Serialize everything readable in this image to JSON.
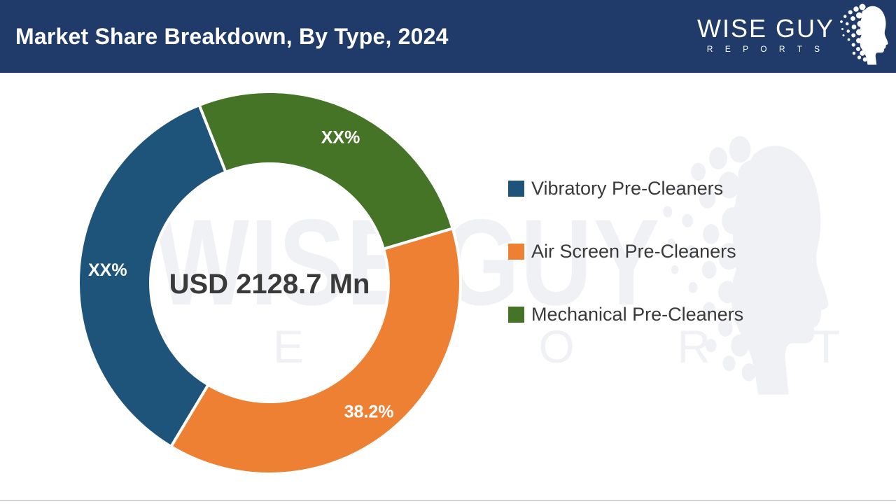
{
  "header": {
    "title": "Market Share Breakdown, By Type, 2024",
    "logo_line1": "WISE GUY",
    "logo_line2": "R E P O R T S"
  },
  "watermark": {
    "line1": "WISE GUY",
    "line2": "R E P O R T S"
  },
  "chart_data": {
    "type": "pie",
    "subtype": "donut",
    "title": "Market Share Breakdown, By Type, 2024",
    "center_label": "USD 2128.7 Mn",
    "direction": "clockwise",
    "rotation_from_top_deg": 211,
    "legend_position": "right",
    "segments": [
      {
        "name": "Vibratory Pre-Cleaners",
        "value_pct": 35.4,
        "value_label": "XX%",
        "color": "#1e537a"
      },
      {
        "name": "Air Screen Pre-Cleaners",
        "value_pct": 38.2,
        "value_label": "38.2%",
        "color": "#ed8033"
      },
      {
        "name": "Mechanical Pre-Cleaners",
        "value_pct": 26.4,
        "value_label": "XX%",
        "color": "#457427"
      }
    ],
    "clockwise_sequence": [
      "Vibratory Pre-Cleaners",
      "Mechanical Pre-Cleaners",
      "Air Screen Pre-Cleaners"
    ]
  },
  "colors": {
    "header_bg": "#203a69",
    "text_dark": "#3a3a3a",
    "segment_gap": "#ffffff"
  }
}
